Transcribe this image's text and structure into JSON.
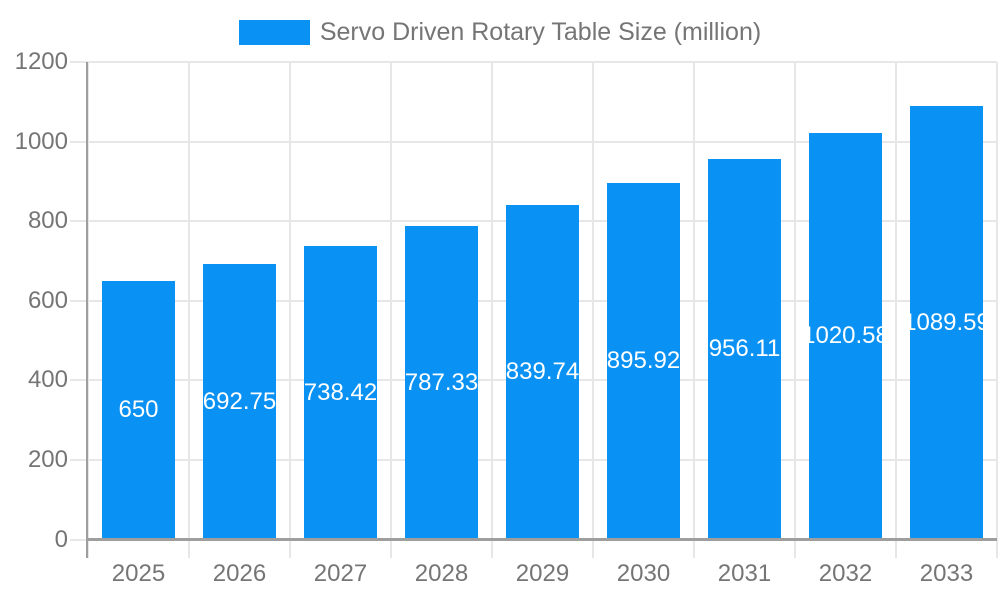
{
  "legend": {
    "label": "Servo Driven Rotary Table Size (million)"
  },
  "chart_data": {
    "type": "bar",
    "title": "Servo Driven Rotary Table Size (million)",
    "categories": [
      "2025",
      "2026",
      "2027",
      "2028",
      "2029",
      "2030",
      "2031",
      "2032",
      "2033"
    ],
    "values": [
      650,
      692.75,
      738.42,
      787.33,
      839.74,
      895.92,
      956.11,
      1020.58,
      1089.59
    ],
    "value_labels": [
      "650",
      "692.75",
      "738.42",
      "787.33",
      "839.74",
      "895.92",
      "956.11",
      "1020.58",
      "1089.59"
    ],
    "xlabel": "",
    "ylabel": "",
    "ylim": [
      0,
      1200
    ],
    "ytick_step": 200,
    "yticks": [
      "0",
      "200",
      "400",
      "600",
      "800",
      "1000",
      "1200"
    ],
    "grid": true,
    "legend_position": "top-center",
    "value_label_position": "inside-center",
    "colors": {
      "bar": "#0a91f4",
      "grid": "#e7e7e7",
      "axis": "#9e9e9e",
      "text": "#757575",
      "value_label": "#ffffff",
      "background": "#ffffff"
    }
  }
}
